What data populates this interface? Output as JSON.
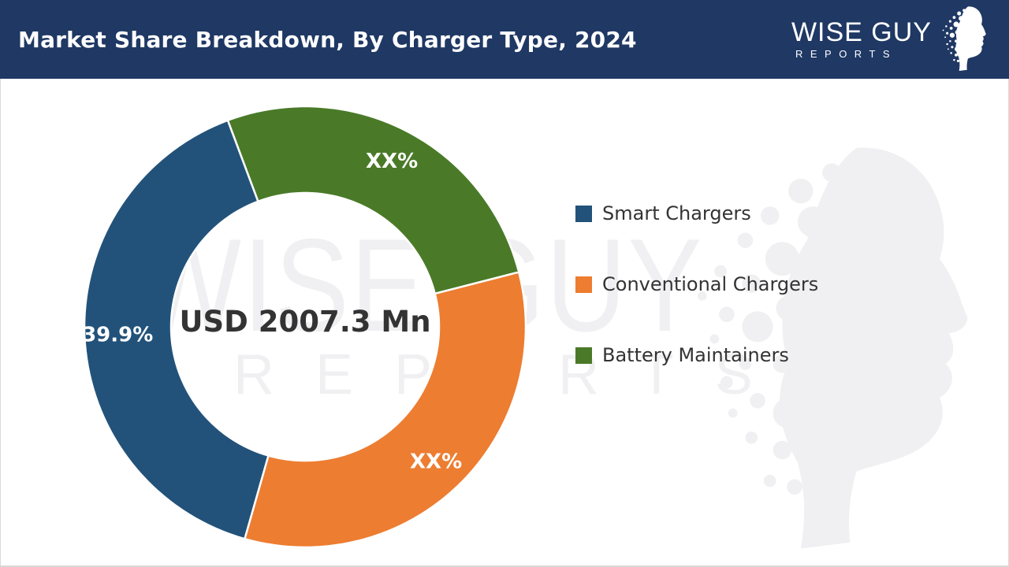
{
  "header": {
    "title": "Market Share Breakdown, By Charger Type, 2024",
    "brand": {
      "line1": "WISE GUY",
      "line2": "REPORTS"
    }
  },
  "watermark": {
    "line1": "WISE GUY",
    "line2": "REPORTS"
  },
  "chart_data": {
    "type": "donut",
    "title": "Market Share Breakdown, By Charger Type, 2024",
    "center_label": "USD 2007.3 Mn",
    "start_angle_deg": 110.5,
    "direction": "counterclockwise",
    "label_distance_fraction": 0.85,
    "legend_position": "right",
    "segments": [
      {
        "name": "Smart Chargers",
        "value_pct": 39.9,
        "display_label": "39.9%",
        "color": "#22527A"
      },
      {
        "name": "Conventional Chargers",
        "value_pct": 33.4,
        "display_label": "XX%",
        "color": "#ED7D31"
      },
      {
        "name": "Battery Maintainers",
        "value_pct": 26.7,
        "display_label": "XX%",
        "color": "#4A7A28"
      }
    ]
  },
  "colors": {
    "header_bg": "#1F3864",
    "title_text": "#FFFFFF",
    "center_text": "#333333",
    "legend_text": "#333333",
    "watermark": "#F0F0F2",
    "border": "#D9D9D9",
    "slice_gap": "#FFFFFF"
  }
}
